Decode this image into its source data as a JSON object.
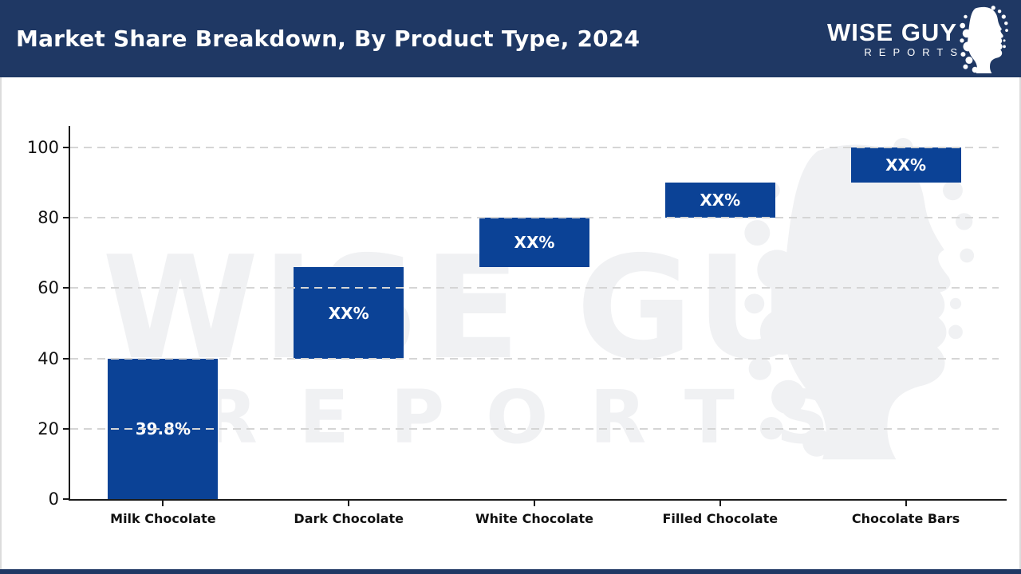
{
  "header": {
    "logo": {
      "line1": "WISE GUY",
      "line2": "REPORTS"
    }
  },
  "watermark": {
    "line1": "WISE GUY",
    "line2": "REPORTS"
  },
  "colors": {
    "header_bg": "#1f3864",
    "bar": "#0b4296",
    "bar_label": "#ffffff",
    "grid": "#d5d5d5",
    "axis": "#1a1a1a",
    "watermark": "#f0f1f3"
  },
  "chart_data": {
    "type": "bar",
    "variant": "waterfall",
    "title": "Market Share Breakdown, By Product Type, 2024",
    "categories": [
      "Milk Chocolate",
      "Dark Chocolate",
      "White Chocolate",
      "Filled Chocolate",
      "Chocolate Bars"
    ],
    "segments": [
      {
        "category": "Milk Chocolate",
        "start": 0,
        "end": 39.8,
        "value_label": "39.8%"
      },
      {
        "category": "Dark Chocolate",
        "start": 39.8,
        "end": 66,
        "value_label": "XX%"
      },
      {
        "category": "White Chocolate",
        "start": 66,
        "end": 80,
        "value_label": "XX%"
      },
      {
        "category": "Filled Chocolate",
        "start": 80,
        "end": 90,
        "value_label": "XX%"
      },
      {
        "category": "Chocolate Bars",
        "start": 90,
        "end": 100,
        "value_label": "XX%"
      }
    ],
    "xlabel": "",
    "ylabel": "",
    "yticks": [
      0,
      20,
      40,
      60,
      80,
      100
    ],
    "ylim": [
      0,
      105
    ],
    "grid": {
      "show": true,
      "style": "dashed",
      "axis": "y",
      "above_bars": true
    },
    "legend": false,
    "value_labels_position": "center-of-bar"
  }
}
